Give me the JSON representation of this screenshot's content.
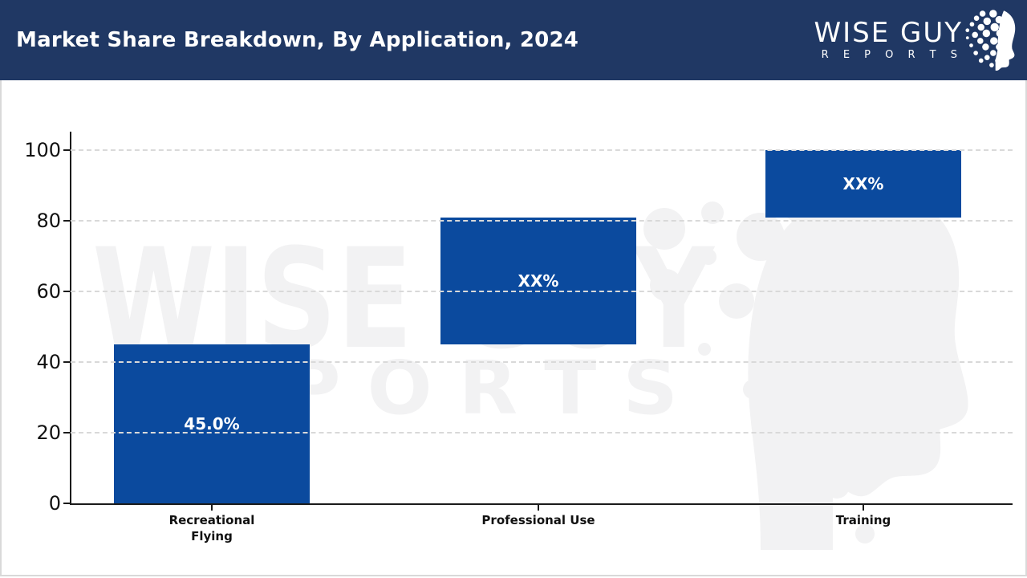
{
  "header": {
    "title": "Market Share Breakdown, By Application, 2024"
  },
  "logo": {
    "line1": "WISE GUY",
    "line2": "R E P O R T S"
  },
  "watermark": {
    "line1": "WISE GUY",
    "line2": "R E P O R T S"
  },
  "chart_data": {
    "type": "bar",
    "subtype": "floating-segment-waterfall",
    "title": "Market Share Breakdown, By Application, 2024",
    "categories": [
      "Recreational\nFlying",
      "Professional Use",
      "Training"
    ],
    "segments": [
      {
        "category": "Recreational Flying",
        "start": 0,
        "end": 45,
        "label": "45.0%"
      },
      {
        "category": "Professional Use",
        "start": 45,
        "end": 81,
        "label": "XX%"
      },
      {
        "category": "Training",
        "start": 81,
        "end": 100,
        "label": "XX%"
      }
    ],
    "yticks": [
      0,
      20,
      40,
      60,
      80,
      100
    ],
    "ylim": [
      0,
      105
    ],
    "xlabel": "",
    "ylabel": "",
    "grid": "horizontal-dashed",
    "legend": "none"
  },
  "colors": {
    "header_bg": "#203864",
    "bar": "#0b4a9e",
    "grid": "#d9d9d9",
    "axis": "#1a1a1a",
    "watermark": "#f2f2f3",
    "edge": "#d9d9d9",
    "title_text": "#ffffff",
    "bar_label_text": "#ffffff"
  }
}
